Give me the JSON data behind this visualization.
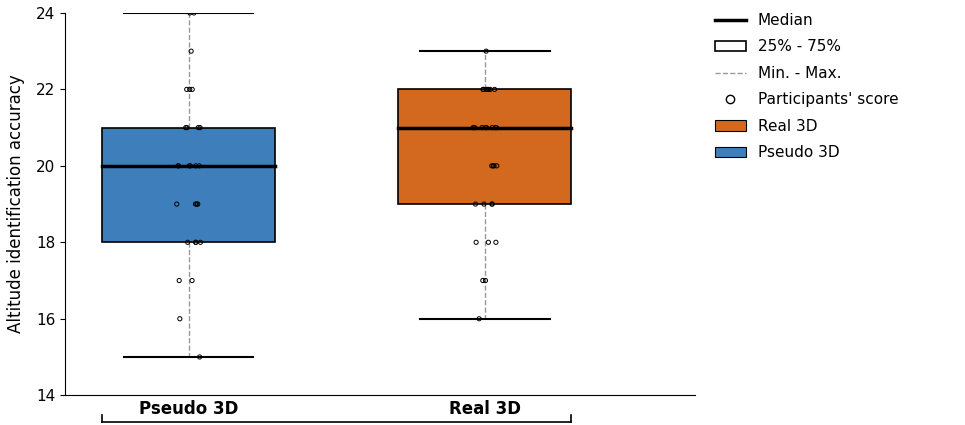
{
  "pseudo3d": {
    "median": 20,
    "q1": 18,
    "q3": 21,
    "whisker_low": 15,
    "whisker_high": 24,
    "points": [
      24,
      24,
      23,
      22,
      22,
      22,
      21,
      21,
      21,
      21,
      20,
      20,
      20,
      20,
      20,
      20,
      19,
      19,
      19,
      19,
      18,
      18,
      18,
      18,
      17,
      17,
      16,
      15
    ],
    "color": "#3E7EBB",
    "label": "Pseudo 3D"
  },
  "real3d": {
    "median": 21,
    "q1": 19,
    "q3": 22,
    "whisker_low": 16,
    "whisker_high": 23,
    "points": [
      23,
      22,
      22,
      22,
      22,
      22,
      22,
      22,
      21,
      21,
      21,
      21,
      21,
      21,
      21,
      21,
      21,
      20,
      20,
      20,
      20,
      19,
      19,
      19,
      19,
      18,
      18,
      18,
      17,
      17,
      16
    ],
    "color": "#D2691E",
    "label": "Real 3D"
  },
  "ylabel": "Altitude identification accuracy",
  "ylim": [
    14,
    24
  ],
  "yticks": [
    14,
    16,
    18,
    20,
    22,
    24
  ],
  "box_width": 0.7,
  "positions": [
    1,
    2.2
  ],
  "background_color": "#ffffff",
  "figsize": [
    9.65,
    4.25
  ],
  "dpi": 100
}
